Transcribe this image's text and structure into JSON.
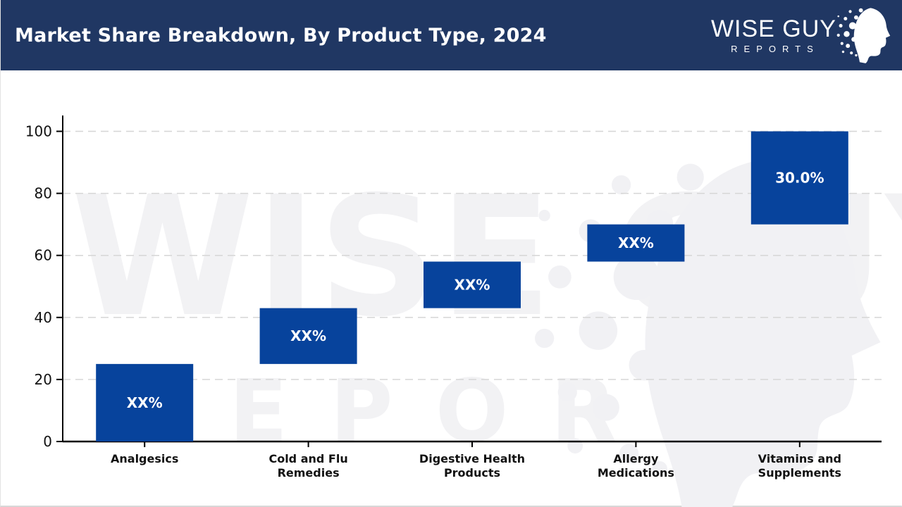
{
  "header": {
    "title": "Market Share Breakdown, By Product Type, 2024",
    "logo": {
      "line1": "WISE GUY",
      "line2": "REPORTS"
    }
  },
  "watermark": {
    "line1": "WISE GUY",
    "line2": "REPORTS"
  },
  "chart_data": {
    "type": "bar",
    "subtype": "waterfall",
    "title": "Market Share Breakdown, By Product Type, 2024",
    "categories": [
      "Analgesics",
      "Cold and Flu Remedies",
      "Digestive Health Products",
      "Allergy Medications",
      "Vitamins and Supplements"
    ],
    "category_lines": [
      [
        "Analgesics"
      ],
      [
        "Cold and Flu",
        "Remedies"
      ],
      [
        "Digestive Health",
        "Products"
      ],
      [
        "Allergy",
        "Medications"
      ],
      [
        "Vitamins and",
        "Supplements"
      ]
    ],
    "values": [
      {
        "start": 0,
        "end": 25,
        "label": "XX%"
      },
      {
        "start": 25,
        "end": 43,
        "label": "XX%"
      },
      {
        "start": 43,
        "end": 58,
        "label": "XX%"
      },
      {
        "start": 58,
        "end": 70,
        "label": "XX%"
      },
      {
        "start": 70,
        "end": 100,
        "label": "30.0%"
      }
    ],
    "xlabel": "",
    "ylabel": "",
    "ylim": [
      0,
      100
    ],
    "yticks": [
      0,
      20,
      40,
      60,
      80,
      100
    ],
    "grid": "horizontal-dashed",
    "legend": "none",
    "colors": {
      "bar": "#07439C",
      "bar_label": "#FFFFFF",
      "grid": "#D6D6D6",
      "axis": "#000000",
      "tick_text": "#111111",
      "header_bg": "#203763",
      "watermark": "#F2F2F4"
    }
  }
}
